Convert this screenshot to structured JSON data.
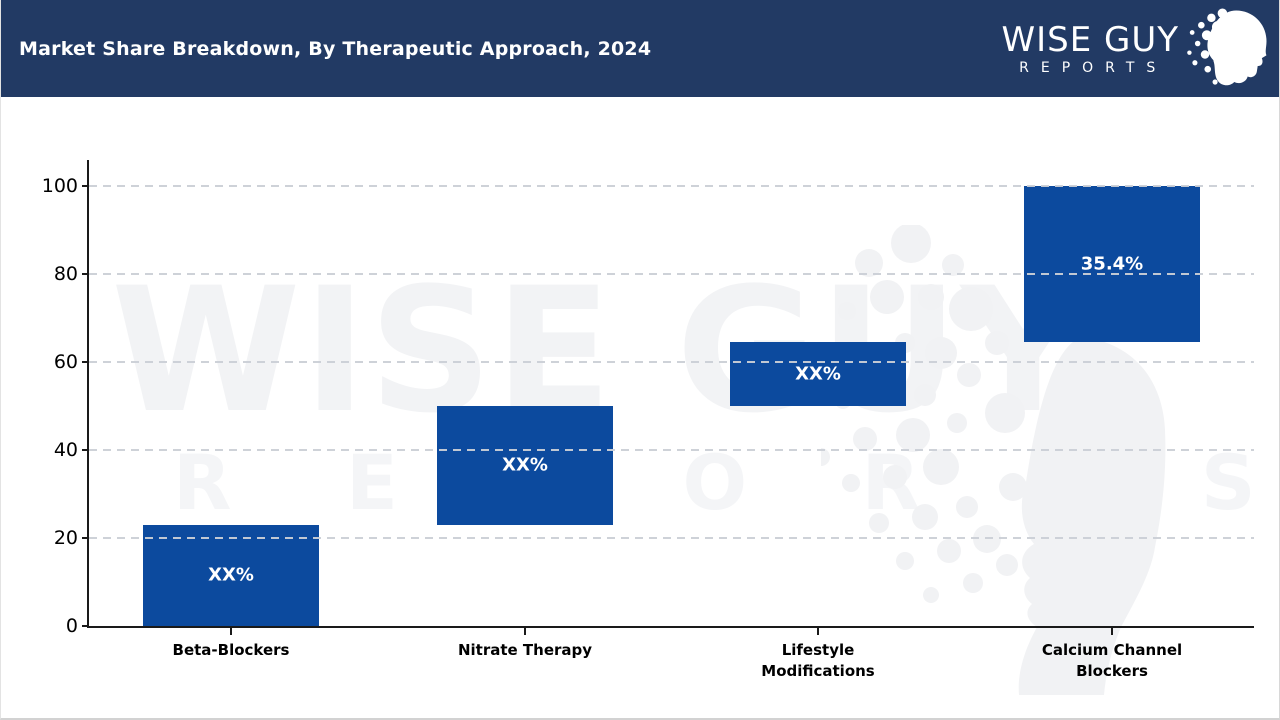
{
  "header": {
    "title": "Market Share Breakdown, By Therapeutic Approach, 2024",
    "bg_color": "#223a64",
    "logo": {
      "line1": "WISE GUY",
      "line2": "REPORTS",
      "icon": "dotted-head-profile-icon"
    }
  },
  "watermark": {
    "line1": "WISE GUY",
    "line2": "R E P O R T S",
    "icon": "dotted-head-profile-watermark"
  },
  "chart_data": {
    "type": "bar",
    "subtype": "floating-waterfall",
    "title": "Market Share Breakdown, By Therapeutic Approach, 2024",
    "categories": [
      "Beta-Blockers",
      "Nitrate Therapy",
      "Lifestyle Modifications",
      "Calcium Channel Blockers"
    ],
    "bars": [
      {
        "category": "Beta-Blockers",
        "start": 0,
        "end": 23,
        "label": "XX%"
      },
      {
        "category": "Nitrate Therapy",
        "start": 23,
        "end": 50,
        "label": "XX%"
      },
      {
        "category": "Lifestyle Modifications",
        "start": 50,
        "end": 64.6,
        "label": "XX%"
      },
      {
        "category": "Calcium Channel Blockers",
        "start": 64.6,
        "end": 100,
        "label": "35.4%"
      }
    ],
    "ylim": [
      0,
      100
    ],
    "yticks": [
      0,
      20,
      40,
      60,
      80,
      100
    ],
    "xlabel": "",
    "ylabel": "",
    "grid": "horizontal-dashed",
    "legend": "none",
    "bar_color": "#0c4a9e",
    "grid_color": "#cbcfd6",
    "axis_color": "#1a1a1a"
  }
}
